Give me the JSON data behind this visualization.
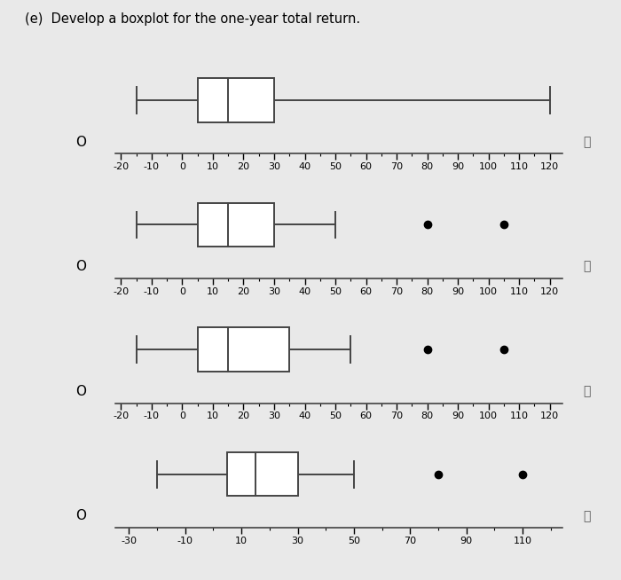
{
  "title": "(e)  Develop a boxplot for the one-year total return.",
  "background_color": "#e9e9e9",
  "boxplots": [
    {
      "whisker_low": -15,
      "q1": 5,
      "median": 15,
      "q3": 30,
      "whisker_high": 120,
      "outliers": [],
      "xmin": -22,
      "xmax": 124,
      "xticks": [
        -20,
        -10,
        0,
        10,
        20,
        30,
        40,
        50,
        60,
        70,
        80,
        90,
        100,
        110,
        120
      ],
      "minor_tick_step": 5
    },
    {
      "whisker_low": -15,
      "q1": 5,
      "median": 15,
      "q3": 30,
      "whisker_high": 50,
      "outliers": [
        80,
        105
      ],
      "xmin": -22,
      "xmax": 124,
      "xticks": [
        -20,
        -10,
        0,
        10,
        20,
        30,
        40,
        50,
        60,
        70,
        80,
        90,
        100,
        110,
        120
      ],
      "minor_tick_step": 5
    },
    {
      "whisker_low": -15,
      "q1": 5,
      "median": 15,
      "q3": 35,
      "whisker_high": 55,
      "outliers": [
        80,
        105
      ],
      "xmin": -22,
      "xmax": 124,
      "xticks": [
        -20,
        -10,
        0,
        10,
        20,
        30,
        40,
        50,
        60,
        70,
        80,
        90,
        100,
        110,
        120
      ],
      "minor_tick_step": 5
    },
    {
      "whisker_low": -20,
      "q1": 5,
      "median": 15,
      "q3": 30,
      "whisker_high": 50,
      "outliers": [
        80,
        110
      ],
      "xmin": -35,
      "xmax": 124,
      "xticks": [
        -30,
        -10,
        10,
        30,
        50,
        70,
        90,
        110
      ],
      "minor_tick_step": 10
    }
  ]
}
